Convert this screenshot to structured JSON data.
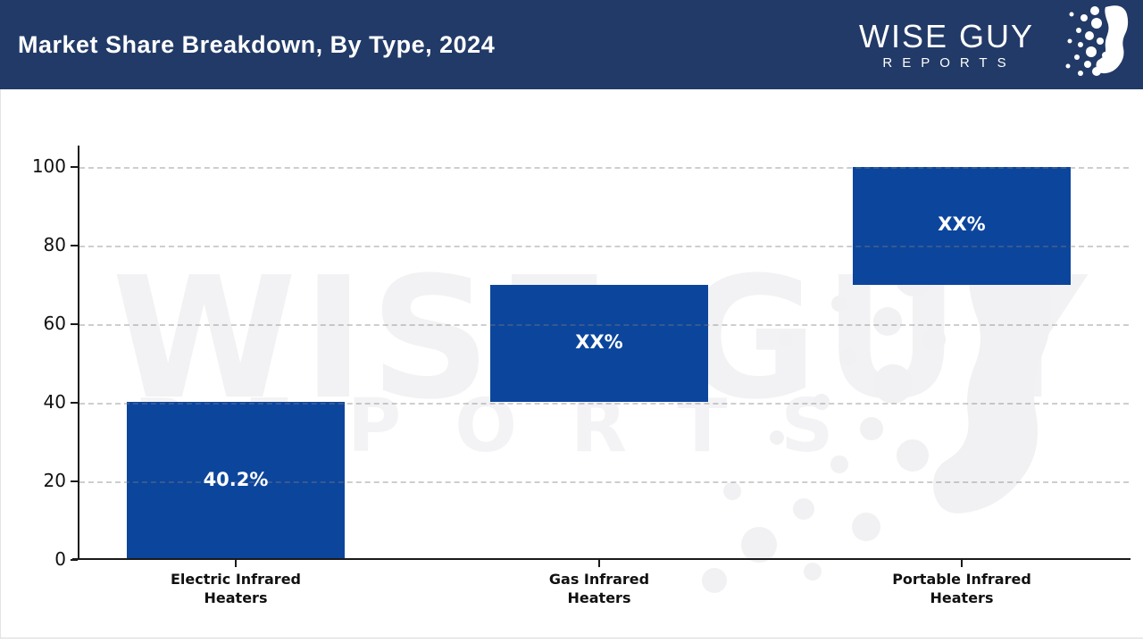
{
  "header": {
    "title": "Market Share Breakdown, By Type, 2024",
    "logo": {
      "line1": "WISE GUY",
      "line2": "REPORTS"
    }
  },
  "watermark": {
    "line1": "WISE GUY",
    "line2": "REPORTS"
  },
  "chart_data": {
    "type": "bar",
    "variant": "waterfall-stacked-segments",
    "title": "Market Share Breakdown, By Type, 2024",
    "xlabel": "",
    "ylabel": "",
    "ylim": [
      0,
      100
    ],
    "yticks": [
      0,
      20,
      40,
      60,
      80,
      100
    ],
    "grid": "dashed-horizontal",
    "legend": "none",
    "bar_color": "#0C459C",
    "value_label_color": "#ffffff",
    "categories": [
      {
        "line1": "Electric Infrared",
        "line2": "Heaters"
      },
      {
        "line1": "Gas Infrared",
        "line2": "Heaters"
      },
      {
        "line1": "Portable Infrared",
        "line2": "Heaters"
      }
    ],
    "segments": [
      {
        "category": "Electric Infrared Heaters",
        "start": 0,
        "end": 40.2,
        "label": "40.2%"
      },
      {
        "category": "Gas Infrared Heaters",
        "start": 40.2,
        "end": 70,
        "label": "XX%"
      },
      {
        "category": "Portable Infrared Heaters",
        "start": 70,
        "end": 100,
        "label": "XX%"
      }
    ]
  },
  "colors": {
    "header_bg": "#223A67",
    "bar": "#0C459C",
    "axis": "#1a1a1a",
    "watermark": "#f2f2f4"
  }
}
